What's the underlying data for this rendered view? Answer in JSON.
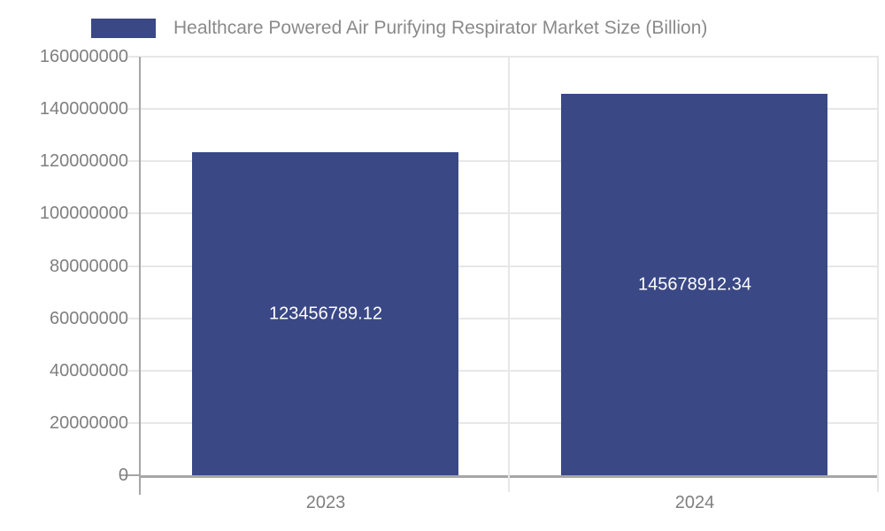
{
  "chart_data": {
    "type": "bar",
    "title": "Healthcare Powered Air Purifying Respirator Market Size (Billion)",
    "categories": [
      "2023",
      "2024"
    ],
    "values": [
      123456789.12,
      145678912.34
    ],
    "value_labels": [
      "123456789.12",
      "145678912.34"
    ],
    "xlabel": "",
    "ylabel": "",
    "ylim": [
      0,
      160000000
    ],
    "ytick_step": 20000000,
    "ytick_labels": [
      "0",
      "20000000",
      "40000000",
      "60000000",
      "80000000",
      "100000000",
      "120000000",
      "140000000",
      "160000000"
    ],
    "grid": true,
    "legend_position": "top-left",
    "colors": {
      "bar": "#3a4886",
      "bar_value_label": "#ffffff",
      "axis_line": "#a6a6a6",
      "gridline": "#e7e7e7",
      "tick_label": "#7f7f7f",
      "title": "#8a8a8a",
      "background": "#ffffff"
    }
  }
}
